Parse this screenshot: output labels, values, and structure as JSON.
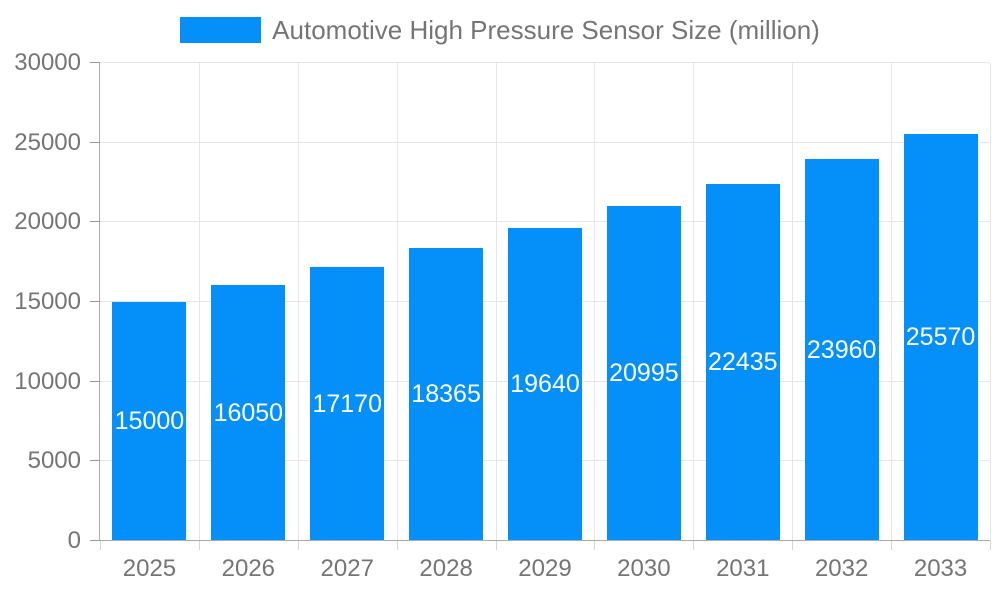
{
  "legend": {
    "label": "Automotive High Pressure Sensor Size (million)"
  },
  "colors": {
    "bar": "#058FF8",
    "legend_text": "#757575",
    "axis_text": "#757575",
    "grid_line": "#E6E6E6",
    "axis_line": "#ABABAB",
    "y_tick": "#999999",
    "x_tick": "#D6D6D6",
    "value_text": "#FFFFFF",
    "background": "#FFFFFF"
  },
  "chart_data": {
    "type": "bar",
    "title": "Automotive High Pressure Sensor Size (million)",
    "categories": [
      "2025",
      "2026",
      "2027",
      "2028",
      "2029",
      "2030",
      "2031",
      "2032",
      "2033"
    ],
    "values": [
      15000,
      16050,
      17170,
      18365,
      19640,
      20995,
      22435,
      23960,
      25570
    ],
    "xlabel": "",
    "ylabel": "",
    "ylim": [
      0,
      30000
    ],
    "yticks": [
      0,
      5000,
      10000,
      15000,
      20000,
      25000,
      30000
    ],
    "grid": true,
    "legend_position": "top-center",
    "value_label_position": "inside-center"
  }
}
